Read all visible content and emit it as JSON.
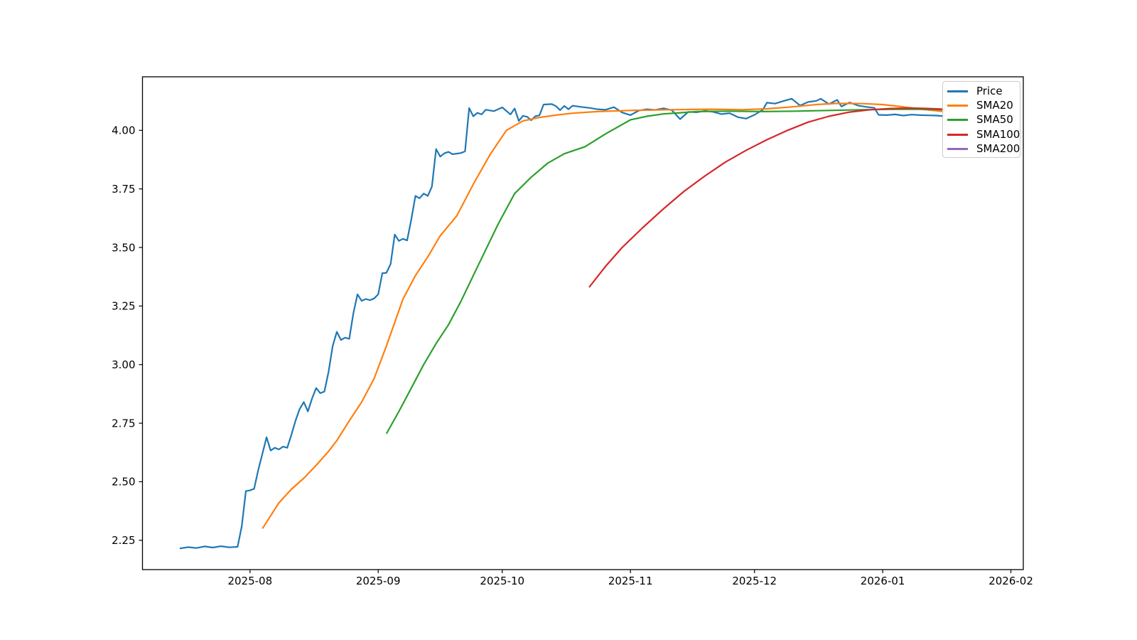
{
  "figure": {
    "background_color": "#ffffff",
    "axes_edge_color": "#000000",
    "tick_label_color": "#000000"
  },
  "chart_data": {
    "type": "line",
    "title": "",
    "xlabel": "",
    "ylabel": "",
    "grid": false,
    "legend_position": "upper right",
    "xlim": [
      "2025-07-06",
      "2026-02-04"
    ],
    "ylim": [
      2.125,
      4.2285
    ],
    "x_tick_dates": [
      "2025-08-01",
      "2025-09-01",
      "2025-10-01",
      "2025-11-01",
      "2025-12-01",
      "2026-01-01",
      "2026-02-01"
    ],
    "x_tick_labels": [
      "2025-08",
      "2025-09",
      "2025-10",
      "2025-11",
      "2025-12",
      "2026-01",
      "2026-02"
    ],
    "y_tick_values": [
      2.25,
      2.5,
      2.75,
      3.0,
      3.25,
      3.5,
      3.75,
      4.0
    ],
    "y_tick_labels": [
      "2.25",
      "2.50",
      "2.75",
      "3.00",
      "3.25",
      "3.50",
      "3.75",
      "4.00"
    ],
    "series": [
      {
        "name": "Price",
        "color": "#1f77b4",
        "points": [
          [
            "2025-07-15",
            2.215
          ],
          [
            "2025-07-17",
            2.221
          ],
          [
            "2025-07-19",
            2.217
          ],
          [
            "2025-07-21",
            2.224
          ],
          [
            "2025-07-23",
            2.219
          ],
          [
            "2025-07-25",
            2.225
          ],
          [
            "2025-07-27",
            2.22
          ],
          [
            "2025-07-29",
            2.222
          ],
          [
            "2025-07-30",
            2.31
          ],
          [
            "2025-07-31",
            2.46
          ],
          [
            "2025-08-01",
            2.463
          ],
          [
            "2025-08-02",
            2.47
          ],
          [
            "2025-08-03",
            2.55
          ],
          [
            "2025-08-04",
            2.62
          ],
          [
            "2025-08-05",
            2.69
          ],
          [
            "2025-08-06",
            2.633
          ],
          [
            "2025-08-07",
            2.645
          ],
          [
            "2025-08-08",
            2.638
          ],
          [
            "2025-08-09",
            2.65
          ],
          [
            "2025-08-10",
            2.645
          ],
          [
            "2025-08-11",
            2.7
          ],
          [
            "2025-08-12",
            2.76
          ],
          [
            "2025-08-13",
            2.81
          ],
          [
            "2025-08-14",
            2.84
          ],
          [
            "2025-08-15",
            2.8
          ],
          [
            "2025-08-16",
            2.855
          ],
          [
            "2025-08-17",
            2.9
          ],
          [
            "2025-08-18",
            2.878
          ],
          [
            "2025-08-19",
            2.885
          ],
          [
            "2025-08-20",
            2.97
          ],
          [
            "2025-08-21",
            3.08
          ],
          [
            "2025-08-22",
            3.14
          ],
          [
            "2025-08-23",
            3.105
          ],
          [
            "2025-08-24",
            3.115
          ],
          [
            "2025-08-25",
            3.11
          ],
          [
            "2025-08-26",
            3.22
          ],
          [
            "2025-08-27",
            3.3
          ],
          [
            "2025-08-28",
            3.272
          ],
          [
            "2025-08-29",
            3.28
          ],
          [
            "2025-08-30",
            3.275
          ],
          [
            "2025-08-31",
            3.282
          ],
          [
            "2025-09-01",
            3.3
          ],
          [
            "2025-09-02",
            3.39
          ],
          [
            "2025-09-03",
            3.392
          ],
          [
            "2025-09-04",
            3.43
          ],
          [
            "2025-09-05",
            3.555
          ],
          [
            "2025-09-06",
            3.528
          ],
          [
            "2025-09-07",
            3.537
          ],
          [
            "2025-09-08",
            3.53
          ],
          [
            "2025-09-09",
            3.62
          ],
          [
            "2025-09-10",
            3.72
          ],
          [
            "2025-09-11",
            3.71
          ],
          [
            "2025-09-12",
            3.73
          ],
          [
            "2025-09-13",
            3.72
          ],
          [
            "2025-09-14",
            3.76
          ],
          [
            "2025-09-15",
            3.92
          ],
          [
            "2025-09-16",
            3.888
          ],
          [
            "2025-09-17",
            3.902
          ],
          [
            "2025-09-18",
            3.908
          ],
          [
            "2025-09-19",
            3.898
          ],
          [
            "2025-09-21",
            3.903
          ],
          [
            "2025-09-22",
            3.91
          ],
          [
            "2025-09-23",
            4.095
          ],
          [
            "2025-09-24",
            4.06
          ],
          [
            "2025-09-25",
            4.075
          ],
          [
            "2025-09-26",
            4.068
          ],
          [
            "2025-09-27",
            4.088
          ],
          [
            "2025-09-29",
            4.082
          ],
          [
            "2025-10-01",
            4.098
          ],
          [
            "2025-10-03",
            4.068
          ],
          [
            "2025-10-04",
            4.093
          ],
          [
            "2025-10-05",
            4.04
          ],
          [
            "2025-10-06",
            4.062
          ],
          [
            "2025-10-07",
            4.058
          ],
          [
            "2025-10-08",
            4.043
          ],
          [
            "2025-10-09",
            4.06
          ],
          [
            "2025-10-10",
            4.064
          ],
          [
            "2025-10-11",
            4.11
          ],
          [
            "2025-10-13",
            4.112
          ],
          [
            "2025-10-14",
            4.103
          ],
          [
            "2025-10-15",
            4.086
          ],
          [
            "2025-10-16",
            4.104
          ],
          [
            "2025-10-17",
            4.09
          ],
          [
            "2025-10-18",
            4.105
          ],
          [
            "2025-10-20",
            4.1
          ],
          [
            "2025-10-22",
            4.096
          ],
          [
            "2025-10-24",
            4.09
          ],
          [
            "2025-10-26",
            4.088
          ],
          [
            "2025-10-28",
            4.099
          ],
          [
            "2025-10-30",
            4.076
          ],
          [
            "2025-11-01",
            4.065
          ],
          [
            "2025-11-03",
            4.084
          ],
          [
            "2025-11-05",
            4.09
          ],
          [
            "2025-11-07",
            4.087
          ],
          [
            "2025-11-09",
            4.094
          ],
          [
            "2025-11-11",
            4.086
          ],
          [
            "2025-11-13",
            4.048
          ],
          [
            "2025-11-15",
            4.079
          ],
          [
            "2025-11-17",
            4.077
          ],
          [
            "2025-11-19",
            4.083
          ],
          [
            "2025-11-21",
            4.079
          ],
          [
            "2025-11-23",
            4.069
          ],
          [
            "2025-11-25",
            4.073
          ],
          [
            "2025-11-27",
            4.056
          ],
          [
            "2025-11-29",
            4.05
          ],
          [
            "2025-12-01",
            4.066
          ],
          [
            "2025-12-03",
            4.088
          ],
          [
            "2025-12-04",
            4.118
          ],
          [
            "2025-12-06",
            4.114
          ],
          [
            "2025-12-08",
            4.125
          ],
          [
            "2025-12-10",
            4.135
          ],
          [
            "2025-12-12",
            4.106
          ],
          [
            "2025-12-14",
            4.121
          ],
          [
            "2025-12-16",
            4.126
          ],
          [
            "2025-12-17",
            4.135
          ],
          [
            "2025-12-19",
            4.112
          ],
          [
            "2025-12-21",
            4.13
          ],
          [
            "2025-12-22",
            4.102
          ],
          [
            "2025-12-24",
            4.119
          ],
          [
            "2025-12-26",
            4.106
          ],
          [
            "2025-12-28",
            4.1
          ],
          [
            "2025-12-30",
            4.096
          ],
          [
            "2025-12-31",
            4.066
          ],
          [
            "2026-01-02",
            4.065
          ],
          [
            "2026-01-04",
            4.068
          ],
          [
            "2026-01-06",
            4.063
          ],
          [
            "2026-01-08",
            4.067
          ],
          [
            "2026-01-10",
            4.065
          ],
          [
            "2026-01-12",
            4.064
          ],
          [
            "2026-01-14",
            4.063
          ],
          [
            "2026-01-16",
            4.06
          ]
        ]
      },
      {
        "name": "SMA20",
        "color": "#ff7f0e",
        "points": [
          [
            "2025-08-04",
            2.3
          ],
          [
            "2025-08-06",
            2.355
          ],
          [
            "2025-08-08",
            2.41
          ],
          [
            "2025-08-11",
            2.468
          ],
          [
            "2025-08-14",
            2.515
          ],
          [
            "2025-08-17",
            2.57
          ],
          [
            "2025-08-20",
            2.63
          ],
          [
            "2025-08-22",
            2.676
          ],
          [
            "2025-08-25",
            2.76
          ],
          [
            "2025-08-28",
            2.84
          ],
          [
            "2025-08-31",
            2.94
          ],
          [
            "2025-09-03",
            3.08
          ],
          [
            "2025-09-07",
            3.28
          ],
          [
            "2025-09-10",
            3.38
          ],
          [
            "2025-09-13",
            3.46
          ],
          [
            "2025-09-16",
            3.55
          ],
          [
            "2025-09-20",
            3.635
          ],
          [
            "2025-09-24",
            3.77
          ],
          [
            "2025-09-28",
            3.895
          ],
          [
            "2025-10-02",
            4.0
          ],
          [
            "2025-10-06",
            4.04
          ],
          [
            "2025-10-10",
            4.055
          ],
          [
            "2025-10-14",
            4.065
          ],
          [
            "2025-10-18",
            4.073
          ],
          [
            "2025-10-24",
            4.08
          ],
          [
            "2025-11-01",
            4.085
          ],
          [
            "2025-11-10",
            4.088
          ],
          [
            "2025-11-20",
            4.09
          ],
          [
            "2025-11-28",
            4.088
          ],
          [
            "2025-12-04",
            4.092
          ],
          [
            "2025-12-10",
            4.1
          ],
          [
            "2025-12-16",
            4.11
          ],
          [
            "2025-12-21",
            4.115
          ],
          [
            "2025-12-27",
            4.114
          ],
          [
            "2026-01-01",
            4.11
          ],
          [
            "2026-01-06",
            4.1
          ],
          [
            "2026-01-11",
            4.089
          ],
          [
            "2026-01-16",
            4.08
          ]
        ]
      },
      {
        "name": "SMA50",
        "color": "#2ca02c",
        "points": [
          [
            "2025-09-03",
            2.705
          ],
          [
            "2025-09-06",
            2.8
          ],
          [
            "2025-09-09",
            2.9
          ],
          [
            "2025-09-12",
            3.0
          ],
          [
            "2025-09-15",
            3.09
          ],
          [
            "2025-09-18",
            3.17
          ],
          [
            "2025-09-21",
            3.27
          ],
          [
            "2025-09-24",
            3.38
          ],
          [
            "2025-09-27",
            3.49
          ],
          [
            "2025-09-30",
            3.6
          ],
          [
            "2025-10-04",
            3.73
          ],
          [
            "2025-10-08",
            3.8
          ],
          [
            "2025-10-12",
            3.86
          ],
          [
            "2025-10-16",
            3.9
          ],
          [
            "2025-10-21",
            3.93
          ],
          [
            "2025-10-26",
            3.985
          ],
          [
            "2025-11-01",
            4.045
          ],
          [
            "2025-11-05",
            4.06
          ],
          [
            "2025-11-09",
            4.07
          ],
          [
            "2025-11-13",
            4.075
          ],
          [
            "2025-11-17",
            4.08
          ],
          [
            "2025-11-25",
            4.082
          ],
          [
            "2025-12-03",
            4.08
          ],
          [
            "2025-12-11",
            4.082
          ],
          [
            "2025-12-19",
            4.085
          ],
          [
            "2025-12-27",
            4.088
          ],
          [
            "2026-01-04",
            4.09
          ],
          [
            "2026-01-10",
            4.09
          ],
          [
            "2026-01-16",
            4.088
          ]
        ]
      },
      {
        "name": "SMA100",
        "color": "#d62728",
        "points": [
          [
            "2025-10-22",
            3.33
          ],
          [
            "2025-10-26",
            3.42
          ],
          [
            "2025-10-30",
            3.5
          ],
          [
            "2025-11-04",
            3.585
          ],
          [
            "2025-11-09",
            3.665
          ],
          [
            "2025-11-14",
            3.74
          ],
          [
            "2025-11-19",
            3.805
          ],
          [
            "2025-11-24",
            3.865
          ],
          [
            "2025-11-29",
            3.915
          ],
          [
            "2025-12-04",
            3.96
          ],
          [
            "2025-12-09",
            4.0
          ],
          [
            "2025-12-14",
            4.035
          ],
          [
            "2025-12-19",
            4.06
          ],
          [
            "2025-12-24",
            4.078
          ],
          [
            "2025-12-29",
            4.088
          ],
          [
            "2026-01-03",
            4.093
          ],
          [
            "2026-01-08",
            4.095
          ],
          [
            "2026-01-12",
            4.093
          ],
          [
            "2026-01-16",
            4.09
          ]
        ]
      },
      {
        "name": "SMA200",
        "color": "#9467bd",
        "points": []
      }
    ]
  }
}
